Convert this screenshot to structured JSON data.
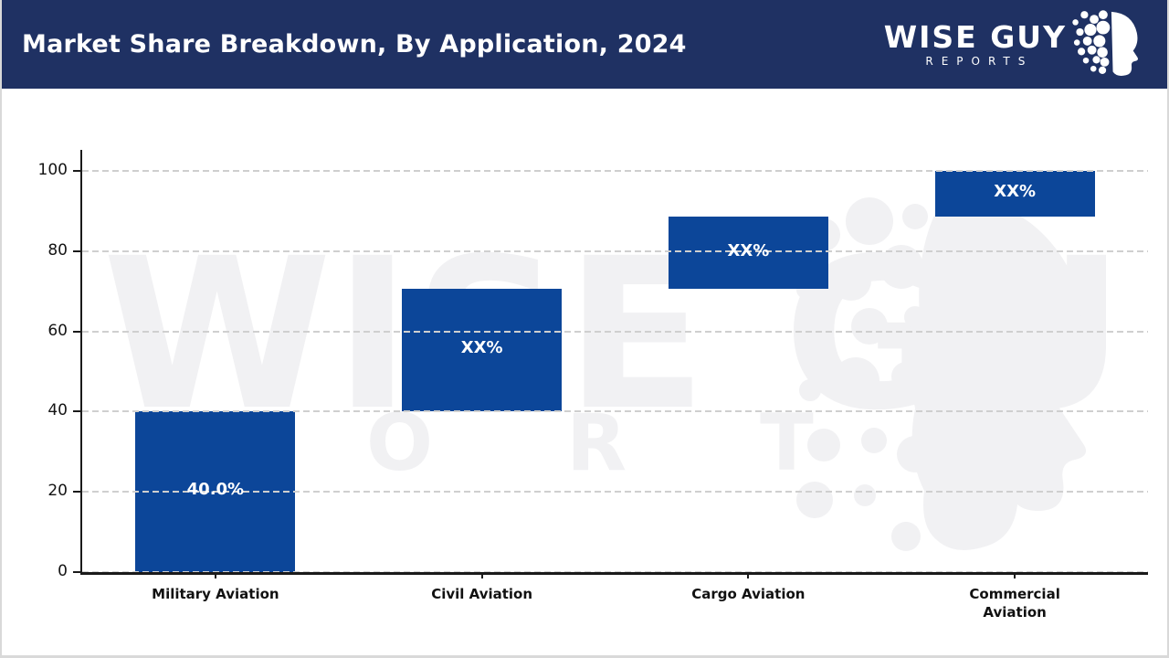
{
  "header": {
    "title": "Market Share Breakdown, By Application, 2024",
    "bg_color": "#1f3163",
    "logo": {
      "line1": "WISE GUY",
      "line2": "REPORTS"
    }
  },
  "watermark": {
    "line1": "WISE GU",
    "line2": "P O R T S"
  },
  "chart_data": {
    "type": "bar",
    "subtype": "waterfall",
    "title": "Market Share Breakdown, By Application, 2024",
    "categories": [
      "Military Aviation",
      "Civil Aviation",
      "Cargo Aviation",
      "Commercial\nAviation"
    ],
    "segments": [
      {
        "category": "Military Aviation",
        "start": 0,
        "end": 40,
        "label": "40.0%"
      },
      {
        "category": "Civil Aviation",
        "start": 40,
        "end": 70.5,
        "label": "XX%"
      },
      {
        "category": "Cargo Aviation",
        "start": 70.5,
        "end": 88.5,
        "label": "XX%"
      },
      {
        "category": "Commercial Aviation",
        "start": 88.5,
        "end": 100,
        "label": "XX%"
      }
    ],
    "yticks": [
      0,
      20,
      40,
      60,
      80,
      100
    ],
    "ylim": [
      0,
      105.2
    ],
    "xlabel": "",
    "ylabel": "",
    "grid": "horizontal-dashed",
    "legend": "none",
    "bar_color": "#0c4699",
    "bar_label_color": "#ffffff"
  }
}
